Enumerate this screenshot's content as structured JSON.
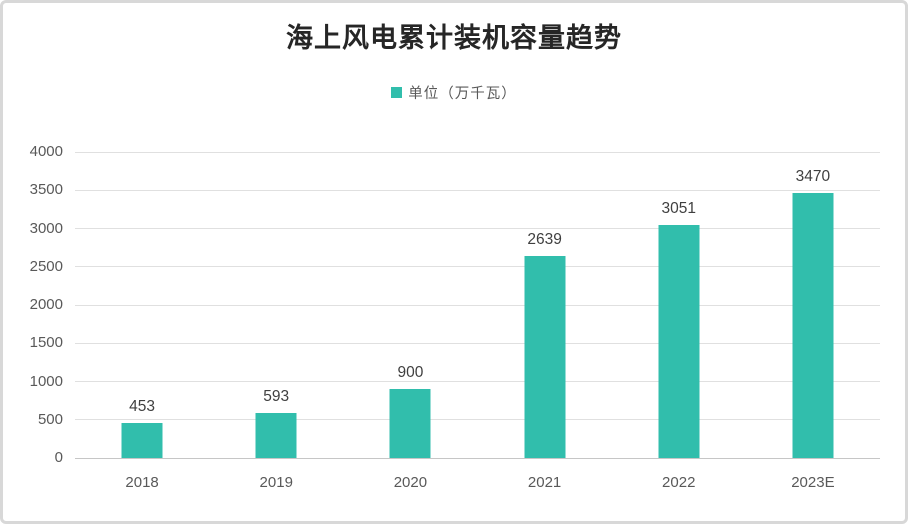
{
  "chart_data": {
    "type": "bar",
    "title": "海上风电累计装机容量趋势",
    "legend": {
      "label": "单位（万千瓦）",
      "position": "top"
    },
    "categories": [
      "2018",
      "2019",
      "2020",
      "2021",
      "2022",
      "2023E"
    ],
    "values": [
      453,
      593,
      900,
      2639,
      3051,
      3470
    ],
    "xlabel": "",
    "ylabel": "",
    "ylim": [
      0,
      4000
    ],
    "yticks": [
      0,
      500,
      1000,
      1500,
      2000,
      2500,
      3000,
      3500,
      4000
    ],
    "grid": true,
    "colors": {
      "bar": "#31beac",
      "title_text": "#262626",
      "axis_text": "#595959",
      "value_label_text": "#3f3f3f",
      "gridline": "#e0e0e0",
      "axis_line": "#c6c6c6",
      "card_border": "#d8d8d8",
      "background": "#ffffff"
    }
  }
}
